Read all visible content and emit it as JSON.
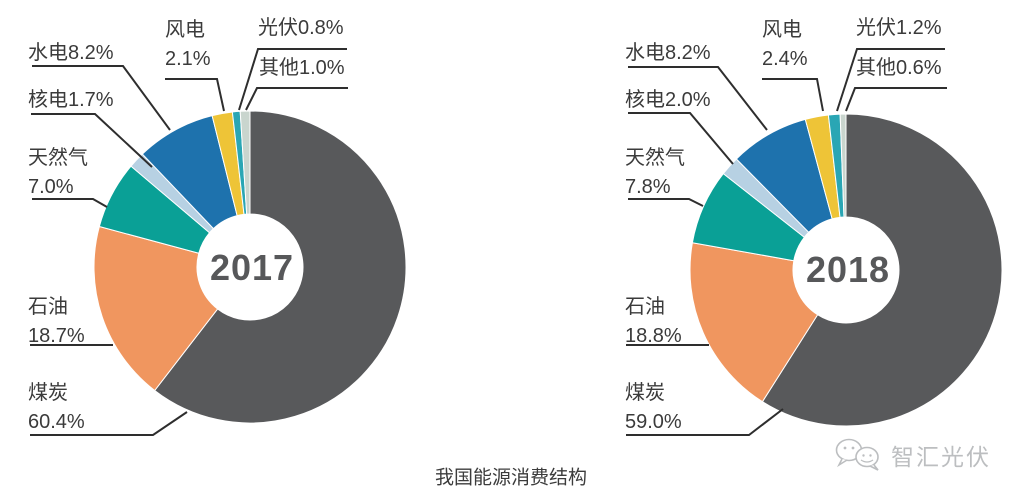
{
  "title": "我国能源消费结构",
  "watermark": {
    "text": "智汇光伏",
    "icon": "wechat-icon",
    "color": "#bcbec0"
  },
  "palette": {
    "coal": "#58595b",
    "oil": "#f0965f",
    "gas": "#0aa096",
    "nuclear": "#b7d1e3",
    "hydro": "#1e72ad",
    "wind": "#eec437",
    "solar": "#2aa6b4",
    "other": "#c9d5ce"
  },
  "line_color": "#2e2e2e",
  "chart_data": [
    {
      "type": "pie",
      "subtype": "donut",
      "center_label": "2017",
      "segments": [
        {
          "key": "coal",
          "name": "煤炭",
          "pct": "60.4%",
          "value": 60.4
        },
        {
          "key": "oil",
          "name": "石油",
          "pct": "18.7%",
          "value": 18.7
        },
        {
          "key": "gas",
          "name": "天然气",
          "pct": "7.0%",
          "value": 7.0
        },
        {
          "key": "nuclear",
          "name": "核电",
          "pct": "1.7%",
          "value": 1.7
        },
        {
          "key": "hydro",
          "name": "水电",
          "pct": "8.2%",
          "value": 8.2
        },
        {
          "key": "wind",
          "name": "风电",
          "pct": "2.1%",
          "value": 2.1
        },
        {
          "key": "solar",
          "name": "光伏",
          "pct": "0.8%",
          "value": 0.8
        },
        {
          "key": "other",
          "name": "其他",
          "pct": "1.0%",
          "value": 1.0
        }
      ]
    },
    {
      "type": "pie",
      "subtype": "donut",
      "center_label": "2018",
      "segments": [
        {
          "key": "coal",
          "name": "煤炭",
          "pct": "59.0%",
          "value": 59.0
        },
        {
          "key": "oil",
          "name": "石油",
          "pct": "18.8%",
          "value": 18.8
        },
        {
          "key": "gas",
          "name": "天然气",
          "pct": "7.8%",
          "value": 7.8
        },
        {
          "key": "nuclear",
          "name": "核电",
          "pct": "2.0%",
          "value": 2.0
        },
        {
          "key": "hydro",
          "name": "水电",
          "pct": "8.2%",
          "value": 8.2
        },
        {
          "key": "wind",
          "name": "风电",
          "pct": "2.4%",
          "value": 2.4
        },
        {
          "key": "solar",
          "name": "光伏",
          "pct": "1.2%",
          "value": 1.2
        },
        {
          "key": "other",
          "name": "其他",
          "pct": "0.6%",
          "value": 0.6
        }
      ]
    }
  ]
}
